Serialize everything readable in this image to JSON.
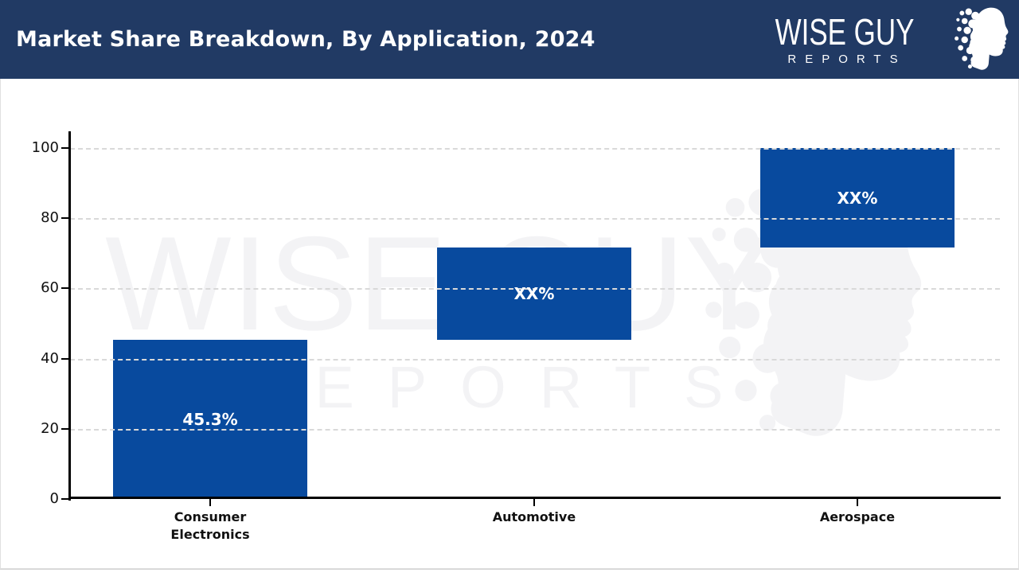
{
  "header": {
    "title": "Market Share Breakdown, By Application, 2024"
  },
  "brand": {
    "wordmark": "WISE GUY",
    "tagline": "REPORTS"
  },
  "chart_data": {
    "type": "bar",
    "subtype": "floating-segment-waterfall",
    "title": "Market Share Breakdown, By Application, 2024",
    "categories": [
      "Consumer\nElectronics",
      "Automotive",
      "Aerospace"
    ],
    "bars": [
      {
        "category": "Consumer Electronics",
        "start": 0,
        "end": 45.3,
        "value": 45.3,
        "label": "45.3%"
      },
      {
        "category": "Automotive",
        "start": 45.3,
        "end": 71.7,
        "value": 26.4,
        "label": "XX%"
      },
      {
        "category": "Aerospace",
        "start": 71.7,
        "end": 100,
        "value": 28.3,
        "label": "XX%"
      }
    ],
    "xlabel": "",
    "ylabel": "",
    "ylim": [
      0,
      100
    ],
    "yticks": [
      0,
      20,
      40,
      60,
      80,
      100
    ],
    "grid": "horizontal-dashed",
    "legend": "none",
    "colors": {
      "bar": "#084a9e",
      "bar_label": "#ffffff",
      "header_bg": "#213a64",
      "grid": "#d9d9d9",
      "axis": "#000000",
      "watermark": "#f3f3f5"
    }
  }
}
